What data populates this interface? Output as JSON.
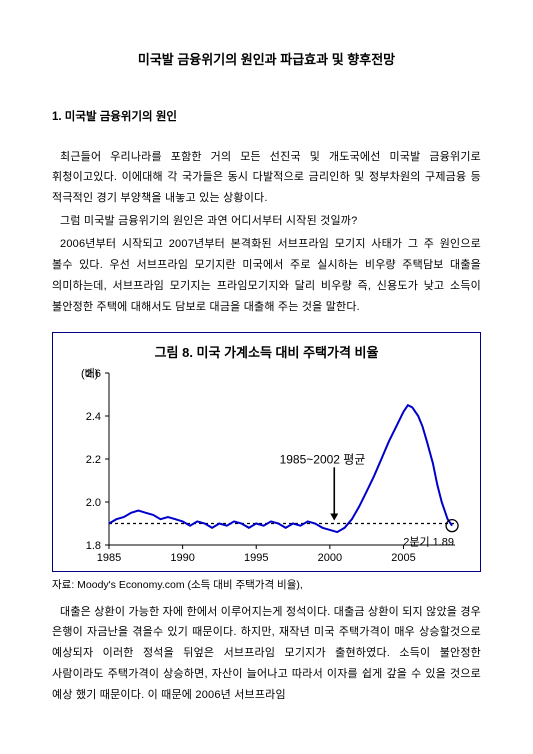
{
  "title": "미국발 금융위기의 원인과 파급효과 및 향후전망",
  "section1": {
    "heading": "1. 미국발 금융위기의 원인",
    "p1": "최근들어 우리나라를 포함한 거의 모든 선진국 및 개도국에선 미국발 금융위기로 휘청이고있다. 이에대해 각 국가들은 동시 다발적으로 금리인하 및 정부차원의 구제금융 등 적극적인 경기 부양책을 내놓고 있는 상황이다.",
    "p2": "그럼 미국발 금융위기의 원인은 과연 어디서부터 시작된 것일까?",
    "p3": "2006년부터 시작되고 2007년부터 본격화된 서브프라임 모기지 사태가 그 주 원인으로 볼수 있다. 우선 서브프라임 모기지란 미국에서 주로 실시하는 비우량 주택담보 대출을 의미하는데, 서브프라임 모기지는 프라임모기지와 달리 비우량 즉, 신용도가 낮고 소득이 불안정한 주택에 대해서도 담보로 대금을 대출해 주는 것을 말한다.",
    "p4": "대출은 상환이 가능한 자에 한에서 이루어지는게 정석이다. 대출금 상환이 되지 않았을 경우 은행이 자금난을 겪을수 있기 때문이다. 하지만, 재작년 미국 주택가격이 매우 상승할것으로 예상되자 이러한 정석을 뒤엎은 서브프라임 모기지가 출현하였다. 소득이 불안정한 사람이라도 주택가격이 상승하면, 자산이 늘어나고 따라서 이자를 쉽게 갚을 수 있을 것으로 예상 했기 때문이다. 이 때문에 2006년 서브프라임"
  },
  "chart": {
    "title": "그림 8. 미국 가계소득 대비 주택가격 비율",
    "y_label": "(배)",
    "y_ticks": [
      1.8,
      2.0,
      2.2,
      2.4,
      2.6
    ],
    "x_ticks": [
      1985,
      1990,
      1995,
      2000,
      2005
    ],
    "annotation_avg": "1985~2002 평균",
    "annotation_end": "2분기 1.89",
    "avg_level": 1.9,
    "series_color": "#0000cc",
    "border_color": "#000080",
    "axis_color": "#000000",
    "bg_color": "#ffffff",
    "source": "자료: Moody's Economy.com (소득 대비 주택가격 비율),",
    "data": [
      {
        "x": 1985.0,
        "y": 1.9
      },
      {
        "x": 1985.5,
        "y": 1.92
      },
      {
        "x": 1986.0,
        "y": 1.93
      },
      {
        "x": 1986.5,
        "y": 1.95
      },
      {
        "x": 1987.0,
        "y": 1.96
      },
      {
        "x": 1987.5,
        "y": 1.95
      },
      {
        "x": 1988.0,
        "y": 1.94
      },
      {
        "x": 1988.5,
        "y": 1.92
      },
      {
        "x": 1989.0,
        "y": 1.93
      },
      {
        "x": 1989.5,
        "y": 1.92
      },
      {
        "x": 1990.0,
        "y": 1.91
      },
      {
        "x": 1990.5,
        "y": 1.89
      },
      {
        "x": 1991.0,
        "y": 1.91
      },
      {
        "x": 1991.5,
        "y": 1.9
      },
      {
        "x": 1992.0,
        "y": 1.88
      },
      {
        "x": 1992.5,
        "y": 1.9
      },
      {
        "x": 1993.0,
        "y": 1.89
      },
      {
        "x": 1993.5,
        "y": 1.91
      },
      {
        "x": 1994.0,
        "y": 1.9
      },
      {
        "x": 1994.5,
        "y": 1.88
      },
      {
        "x": 1995.0,
        "y": 1.9
      },
      {
        "x": 1995.5,
        "y": 1.89
      },
      {
        "x": 1996.0,
        "y": 1.91
      },
      {
        "x": 1996.5,
        "y": 1.9
      },
      {
        "x": 1997.0,
        "y": 1.88
      },
      {
        "x": 1997.5,
        "y": 1.9
      },
      {
        "x": 1998.0,
        "y": 1.89
      },
      {
        "x": 1998.5,
        "y": 1.91
      },
      {
        "x": 1999.0,
        "y": 1.9
      },
      {
        "x": 1999.5,
        "y": 1.88
      },
      {
        "x": 2000.0,
        "y": 1.87
      },
      {
        "x": 2000.5,
        "y": 1.86
      },
      {
        "x": 2001.0,
        "y": 1.88
      },
      {
        "x": 2001.5,
        "y": 1.92
      },
      {
        "x": 2002.0,
        "y": 1.98
      },
      {
        "x": 2002.5,
        "y": 2.05
      },
      {
        "x": 2003.0,
        "y": 2.12
      },
      {
        "x": 2003.5,
        "y": 2.2
      },
      {
        "x": 2004.0,
        "y": 2.28
      },
      {
        "x": 2004.5,
        "y": 2.35
      },
      {
        "x": 2005.0,
        "y": 2.42
      },
      {
        "x": 2005.3,
        "y": 2.45
      },
      {
        "x": 2005.6,
        "y": 2.44
      },
      {
        "x": 2006.0,
        "y": 2.4
      },
      {
        "x": 2006.3,
        "y": 2.35
      },
      {
        "x": 2006.6,
        "y": 2.28
      },
      {
        "x": 2007.0,
        "y": 2.18
      },
      {
        "x": 2007.3,
        "y": 2.08
      },
      {
        "x": 2007.6,
        "y": 2.0
      },
      {
        "x": 2008.0,
        "y": 1.92
      },
      {
        "x": 2008.3,
        "y": 1.89
      }
    ]
  }
}
